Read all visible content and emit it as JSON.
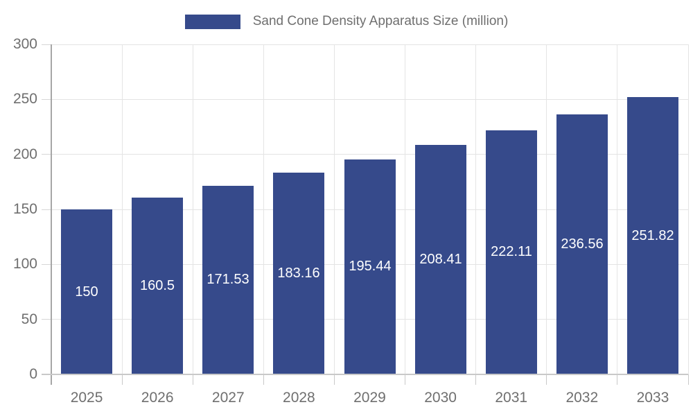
{
  "legend": {
    "label": "Sand Cone Density Apparatus Size (million)"
  },
  "colors": {
    "bar": "#364a8b",
    "grid": "#e4e4e4",
    "axis_text": "#6f6f6f",
    "value_label": "#ffffff",
    "y_axis_line": "#a6a6a6",
    "x_axis_line": "#c9c9c9",
    "background": "#ffffff"
  },
  "chart_data": {
    "type": "bar",
    "title": "Sand Cone Density Apparatus Size (million)",
    "categories": [
      "2025",
      "2026",
      "2027",
      "2028",
      "2029",
      "2030",
      "2031",
      "2032",
      "2033"
    ],
    "values": [
      150,
      160.5,
      171.53,
      183.16,
      195.44,
      208.41,
      222.11,
      236.56,
      251.82
    ],
    "value_labels": [
      "150",
      "160.5",
      "171.53",
      "183.16",
      "195.44",
      "208.41",
      "222.11",
      "236.56",
      "251.82"
    ],
    "xlabel": "",
    "ylabel": "",
    "ylim": [
      0,
      300
    ],
    "ytick_step": 50,
    "grid": true,
    "legend_position": "top",
    "value_label_position": "center-of-bar"
  }
}
